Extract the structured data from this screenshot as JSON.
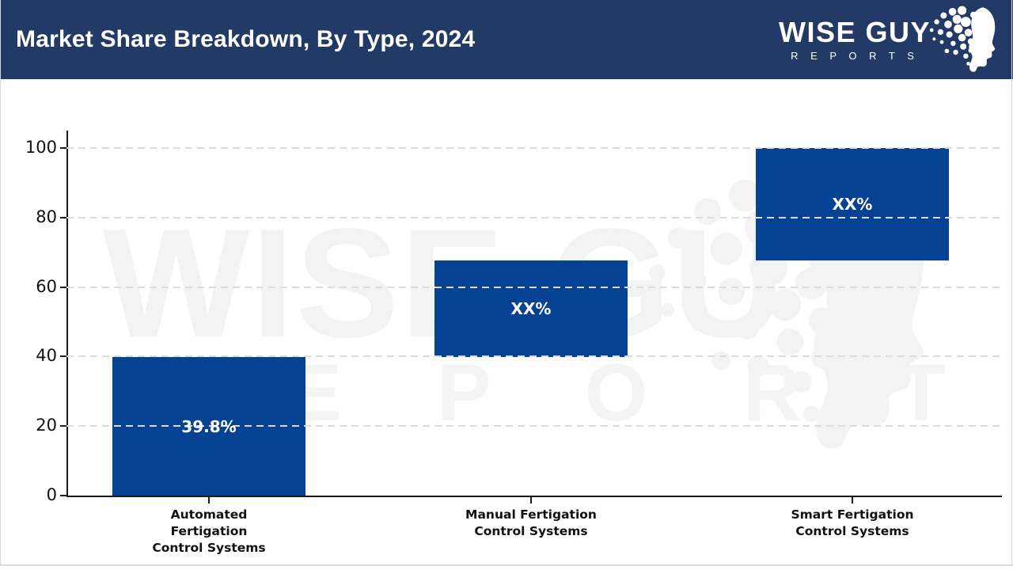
{
  "header": {
    "title": "Market Share Breakdown, By Type, 2024",
    "bg_color": "#233a66",
    "logo": {
      "brand_top": "WISE GUY",
      "brand_bottom": "R E P O R T S"
    }
  },
  "watermark": {
    "line1": "WISE GUY",
    "line2": "R E P O R T S"
  },
  "chart_data": {
    "type": "bar",
    "subtype": "waterfall",
    "title": "Market Share Breakdown, By Type, 2024",
    "categories": [
      [
        "Automated",
        "Fertigation",
        "Control Systems"
      ],
      [
        "Manual Fertigation",
        "Control Systems"
      ],
      [
        "Smart Fertigation",
        "Control Systems"
      ]
    ],
    "segments": [
      {
        "category": "Automated Fertigation Control Systems",
        "start": 0,
        "end": 39.8,
        "label": "39.8%"
      },
      {
        "category": "Manual Fertigation Control Systems",
        "start": 39.8,
        "end": 67.6,
        "label": "XX%"
      },
      {
        "category": "Smart Fertigation Control Systems",
        "start": 67.6,
        "end": 100,
        "label": "XX%"
      }
    ],
    "y_ticks": [
      0,
      20,
      40,
      60,
      80,
      100
    ],
    "ylim": [
      0,
      100
    ],
    "xlabel": "",
    "ylabel": "",
    "legend": "none",
    "grid": "horizontal-dashed",
    "grid_above_bars": true,
    "colors": {
      "bar": "#064294",
      "bar_label": "#ffffff",
      "grid": "#dcdcdc",
      "axis": "#1a1a1a",
      "tick_label": "#111111",
      "header_bg": "#233a66",
      "watermark": "#f3f3f3"
    }
  }
}
